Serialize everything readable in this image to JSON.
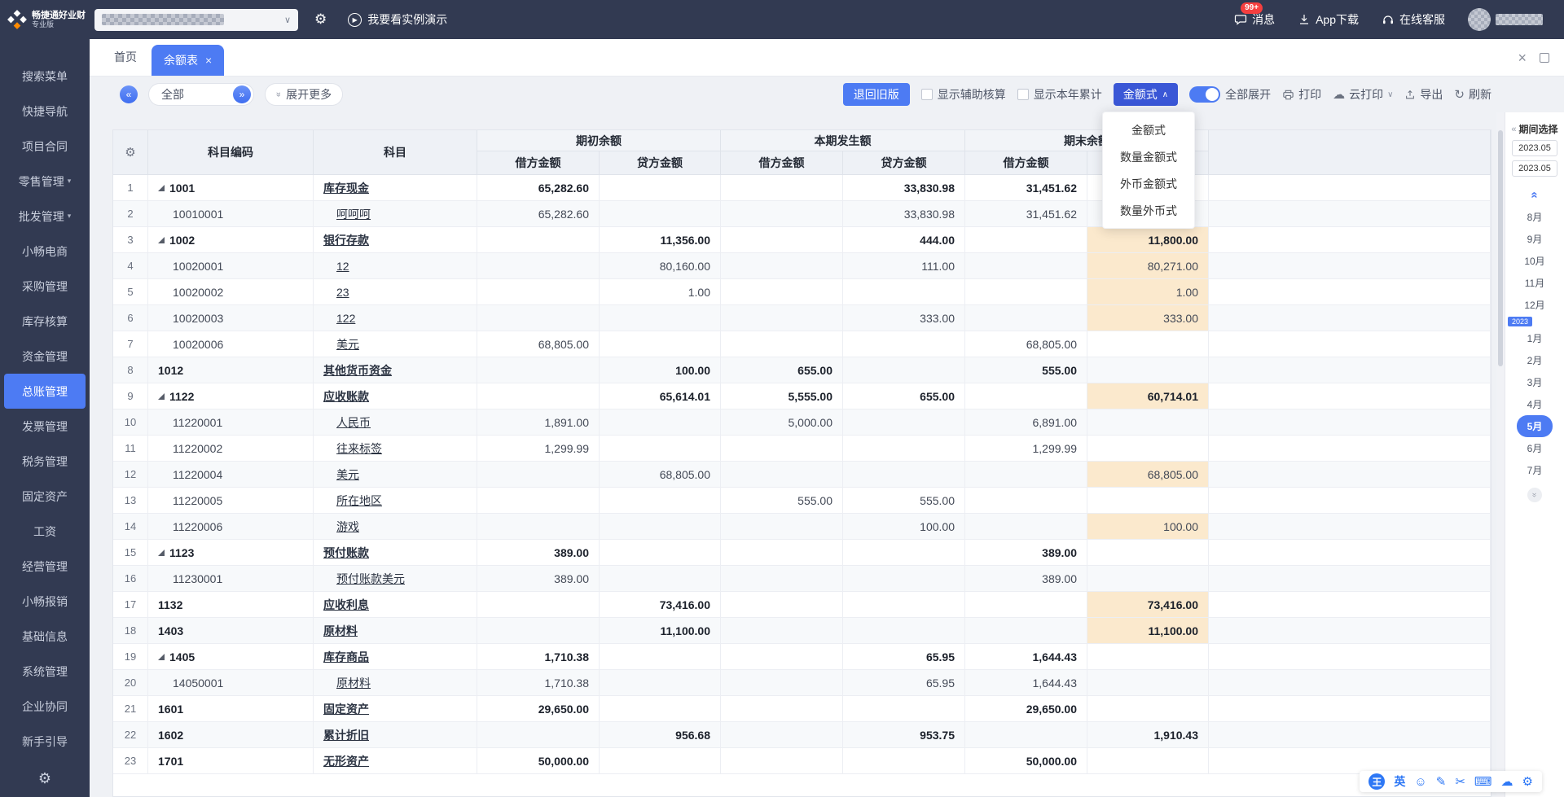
{
  "topbar": {
    "logo_title": "畅捷通好业财",
    "logo_sub": "专业版",
    "demo_link": "我要看实例演示",
    "messages": "消息",
    "messages_badge": "99+",
    "app_download": "App下载",
    "online_service": "在线客服"
  },
  "icons": {
    "gear": "⚙",
    "refresh": "↻",
    "cloud": "☁",
    "prev": "«",
    "next": "»",
    "chevron_down": "∨",
    "chevron_up": "∧",
    "caret_down": "▾",
    "close": "×",
    "double_chevron": "«"
  },
  "sidebar": {
    "items": [
      {
        "id": "search-menu",
        "label": "搜索菜单"
      },
      {
        "id": "quick-nav",
        "label": "快捷导航"
      },
      {
        "id": "project-contract",
        "label": "项目合同"
      },
      {
        "id": "retail-mgmt",
        "label": "零售管理",
        "caret": true
      },
      {
        "id": "wholesale-mgmt",
        "label": "批发管理",
        "caret": true
      },
      {
        "id": "xiaochang-ecommerce",
        "label": "小畅电商"
      },
      {
        "id": "purchase-mgmt",
        "label": "采购管理"
      },
      {
        "id": "inventory-accounting",
        "label": "库存核算"
      },
      {
        "id": "funds-mgmt",
        "label": "资金管理"
      },
      {
        "id": "general-ledger",
        "label": "总账管理",
        "active": true
      },
      {
        "id": "invoice-mgmt",
        "label": "发票管理"
      },
      {
        "id": "tax-mgmt",
        "label": "税务管理"
      },
      {
        "id": "fixed-assets",
        "label": "固定资产"
      },
      {
        "id": "payroll",
        "label": "工资"
      },
      {
        "id": "operations-mgmt",
        "label": "经营管理"
      },
      {
        "id": "xiaochang-expense",
        "label": "小畅报销"
      },
      {
        "id": "basic-info",
        "label": "基础信息"
      },
      {
        "id": "system-mgmt",
        "label": "系统管理"
      },
      {
        "id": "enterprise-collab",
        "label": "企业协同"
      },
      {
        "id": "beginner-guide",
        "label": "新手引导"
      }
    ]
  },
  "tabs": {
    "home": "首页",
    "current": "余额表"
  },
  "toolbar": {
    "scope_value": "全部",
    "expand_more": "展开更多",
    "back_old": "退回旧版",
    "show_aux": "显示辅助核算",
    "show_ytd": "显示本年累计",
    "format": "金额式",
    "expand_all": "全部展开",
    "print": "打印",
    "cloud_print": "云打印",
    "export": "导出",
    "refresh": "刷新"
  },
  "format_menu": {
    "items": [
      "金额式",
      "数量金额式",
      "外币金额式",
      "数量外币式"
    ]
  },
  "table": {
    "headers": {
      "code": "科目编码",
      "name": "科目",
      "groups": [
        "期初余额",
        "本期发生额",
        "期末余额"
      ],
      "debit": "借方金额",
      "credit": "贷方金额"
    },
    "rows": [
      {
        "seq": 1,
        "code": "1001",
        "name": "库存现金",
        "tri": true,
        "bold": true,
        "c": [
          "65,282.60",
          "",
          "",
          "33,830.98",
          "31,451.62",
          ""
        ]
      },
      {
        "seq": 2,
        "code": "10010001",
        "name": "呵呵呵",
        "child": true,
        "c": [
          "65,282.60",
          "",
          "",
          "33,830.98",
          "31,451.62",
          ""
        ]
      },
      {
        "seq": 3,
        "code": "1002",
        "name": "银行存款",
        "tri": true,
        "bold": true,
        "orange": true,
        "c": [
          "",
          "11,356.00",
          "",
          "444.00",
          "",
          "11,800.00"
        ]
      },
      {
        "seq": 4,
        "code": "10020001",
        "name": "12",
        "child": true,
        "orange": true,
        "c": [
          "",
          "80,160.00",
          "",
          "111.00",
          "",
          "80,271.00"
        ]
      },
      {
        "seq": 5,
        "code": "10020002",
        "name": "23",
        "child": true,
        "orange": true,
        "c": [
          "",
          "1.00",
          "",
          "",
          "",
          "1.00"
        ]
      },
      {
        "seq": 6,
        "code": "10020003",
        "name": "122",
        "child": true,
        "orange": true,
        "c": [
          "",
          "",
          "",
          "333.00",
          "",
          "333.00"
        ]
      },
      {
        "seq": 7,
        "code": "10020006",
        "name": "美元",
        "child": true,
        "c": [
          "68,805.00",
          "",
          "",
          "",
          "68,805.00",
          ""
        ]
      },
      {
        "seq": 8,
        "code": "1012",
        "name": "其他货币资金",
        "bold": true,
        "c": [
          "",
          "100.00",
          "655.00",
          "",
          "555.00",
          ""
        ]
      },
      {
        "seq": 9,
        "code": "1122",
        "name": "应收账款",
        "tri": true,
        "bold": true,
        "orange": true,
        "c": [
          "",
          "65,614.01",
          "5,555.00",
          "655.00",
          "",
          "60,714.01"
        ]
      },
      {
        "seq": 10,
        "code": "11220001",
        "name": "人民币",
        "child": true,
        "c": [
          "1,891.00",
          "",
          "5,000.00",
          "",
          "6,891.00",
          ""
        ]
      },
      {
        "seq": 11,
        "code": "11220002",
        "name": "往来标签",
        "child": true,
        "c": [
          "1,299.99",
          "",
          "",
          "",
          "1,299.99",
          ""
        ]
      },
      {
        "seq": 12,
        "code": "11220004",
        "name": "美元",
        "child": true,
        "orange": true,
        "c": [
          "",
          "68,805.00",
          "",
          "",
          "",
          "68,805.00"
        ]
      },
      {
        "seq": 13,
        "code": "11220005",
        "name": "所在地区",
        "child": true,
        "c": [
          "",
          "",
          "555.00",
          "555.00",
          "",
          ""
        ]
      },
      {
        "seq": 14,
        "code": "11220006",
        "name": "游戏",
        "child": true,
        "orange": true,
        "c": [
          "",
          "",
          "",
          "100.00",
          "",
          "100.00"
        ]
      },
      {
        "seq": 15,
        "code": "1123",
        "name": "预付账款",
        "tri": true,
        "bold": true,
        "c": [
          "389.00",
          "",
          "",
          "",
          "389.00",
          ""
        ]
      },
      {
        "seq": 16,
        "code": "11230001",
        "name": "预付账款美元",
        "child": true,
        "c": [
          "389.00",
          "",
          "",
          "",
          "389.00",
          ""
        ]
      },
      {
        "seq": 17,
        "code": "1132",
        "name": "应收利息",
        "bold": true,
        "orange": true,
        "c": [
          "",
          "73,416.00",
          "",
          "",
          "",
          "73,416.00"
        ]
      },
      {
        "seq": 18,
        "code": "1403",
        "name": "原材料",
        "bold": true,
        "orange": true,
        "c": [
          "",
          "11,100.00",
          "",
          "",
          "",
          "11,100.00"
        ]
      },
      {
        "seq": 19,
        "code": "1405",
        "name": "库存商品",
        "tri": true,
        "bold": true,
        "c": [
          "1,710.38",
          "",
          "",
          "65.95",
          "1,644.43",
          ""
        ]
      },
      {
        "seq": 20,
        "code": "14050001",
        "name": "原材料",
        "child": true,
        "c": [
          "1,710.38",
          "",
          "",
          "65.95",
          "1,644.43",
          ""
        ]
      },
      {
        "seq": 21,
        "code": "1601",
        "name": "固定资产",
        "bold": true,
        "c": [
          "29,650.00",
          "",
          "",
          "",
          "29,650.00",
          ""
        ]
      },
      {
        "seq": 22,
        "code": "1602",
        "name": "累计折旧",
        "bold": true,
        "c": [
          "",
          "956.68",
          "",
          "953.75",
          "",
          "1,910.43"
        ]
      },
      {
        "seq": 23,
        "code": "1701",
        "name": "无形资产",
        "bold": true,
        "c": [
          "50,000.00",
          "",
          "",
          "",
          "50,000.00",
          ""
        ]
      }
    ]
  },
  "period_panel": {
    "title": "期间选择",
    "date_from": "2023.05",
    "date_to": "2023.05",
    "year_badge": "2023",
    "badge_before": "1月",
    "months": [
      "8月",
      "9月",
      "10月",
      "11月",
      "12月",
      "1月",
      "2月",
      "3月",
      "4月",
      "5月",
      "6月",
      "7月"
    ],
    "active_month": "5月"
  },
  "ime": {
    "logo": "王",
    "lang": "英",
    "icons": [
      "☺",
      "✎",
      "✂",
      "⌨",
      "☁",
      "⚙"
    ]
  }
}
